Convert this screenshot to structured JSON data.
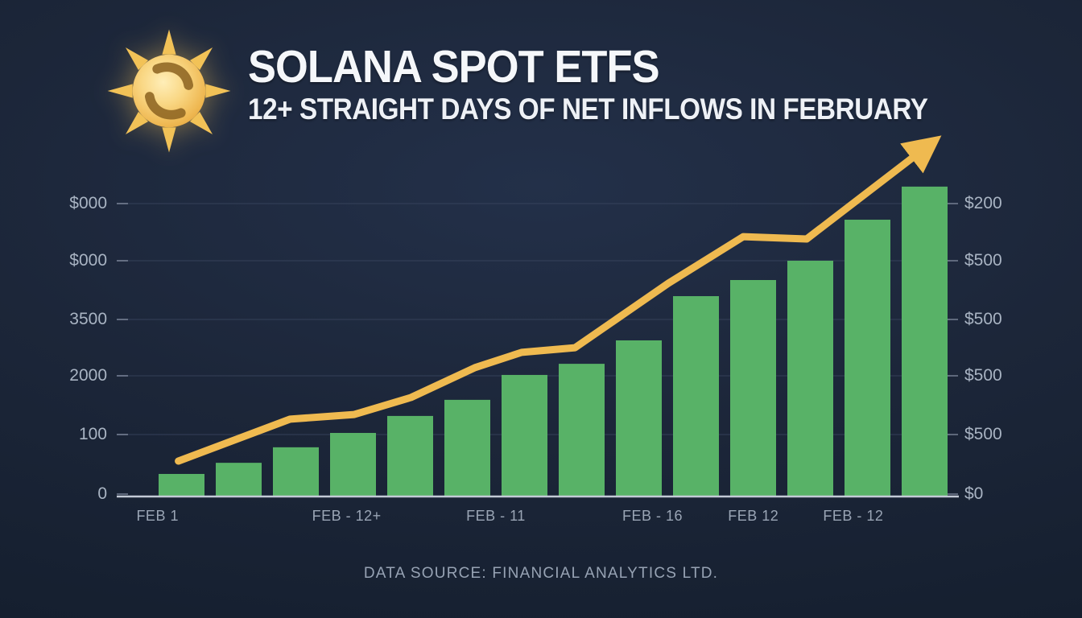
{
  "header": {
    "logo_icon": "sun-swirl-icon",
    "title": "SOLANA SPOT ETFS",
    "subtitle": "12+ STRAIGHT DAYS OF NET INFLOWS IN FEBRUARY"
  },
  "chart_data": {
    "type": "bar",
    "overlay": "line-with-arrow",
    "title": "SOLANA SPOT ETFS — 12+ STRAIGHT DAYS OF NET INFLOWS IN FEBRUARY",
    "xlabel": "",
    "ylabel": "",
    "grid": true,
    "legend_position": "none",
    "x_tick_labels": [
      "FEB 1",
      "FEB - 12+",
      "FEB - 11",
      "FEB - 16",
      "FEB 12",
      "FEB - 12"
    ],
    "x_tick_positions_pct": [
      4.9,
      27.6,
      45.5,
      64.3,
      76.4,
      88.4
    ],
    "left_axis_tick_labels": [
      "$000",
      "$000",
      "3500",
      "2000",
      "100",
      "0"
    ],
    "right_axis_tick_labels": [
      "$200",
      "$500",
      "$500",
      "$500",
      "$500",
      "$0"
    ],
    "bar_count": 14,
    "bar_values_pct_of_axis": [
      7.7,
      11.5,
      16.8,
      21.7,
      27.5,
      33.0,
      41.5,
      45.3,
      53.3,
      68.4,
      73.9,
      80.5,
      94.5,
      105.8
    ],
    "axis_range_pct": [
      0,
      100
    ],
    "line_points_pct": [
      [
        7.4,
        12.1
      ],
      [
        20.8,
        26.4
      ],
      [
        28.5,
        28.0
      ],
      [
        35.3,
        33.8
      ],
      [
        43.0,
        44.0
      ],
      [
        48.6,
        49.2
      ],
      [
        55.0,
        50.8
      ],
      [
        66.2,
        72.8
      ],
      [
        75.2,
        88.7
      ],
      [
        82.8,
        87.9
      ],
      [
        96.9,
        118.7
      ]
    ]
  },
  "footer": {
    "source": "DATA SOURCE: FINANCIAL ANALYTICS LTD."
  },
  "colors": {
    "background": "#1c2639",
    "bar_green": "#58b267",
    "line_amber": "#efba50",
    "grid_line": "#3b4760",
    "tick_stub": "#8b95a8",
    "axis_line": "#c3cad6",
    "title_text": "#f5f7fa",
    "axis_text": "#a9b4c3",
    "muted_text": "#97a3b4",
    "sun_gold": "#f2c257",
    "swirl_brown": "#8f6623"
  }
}
